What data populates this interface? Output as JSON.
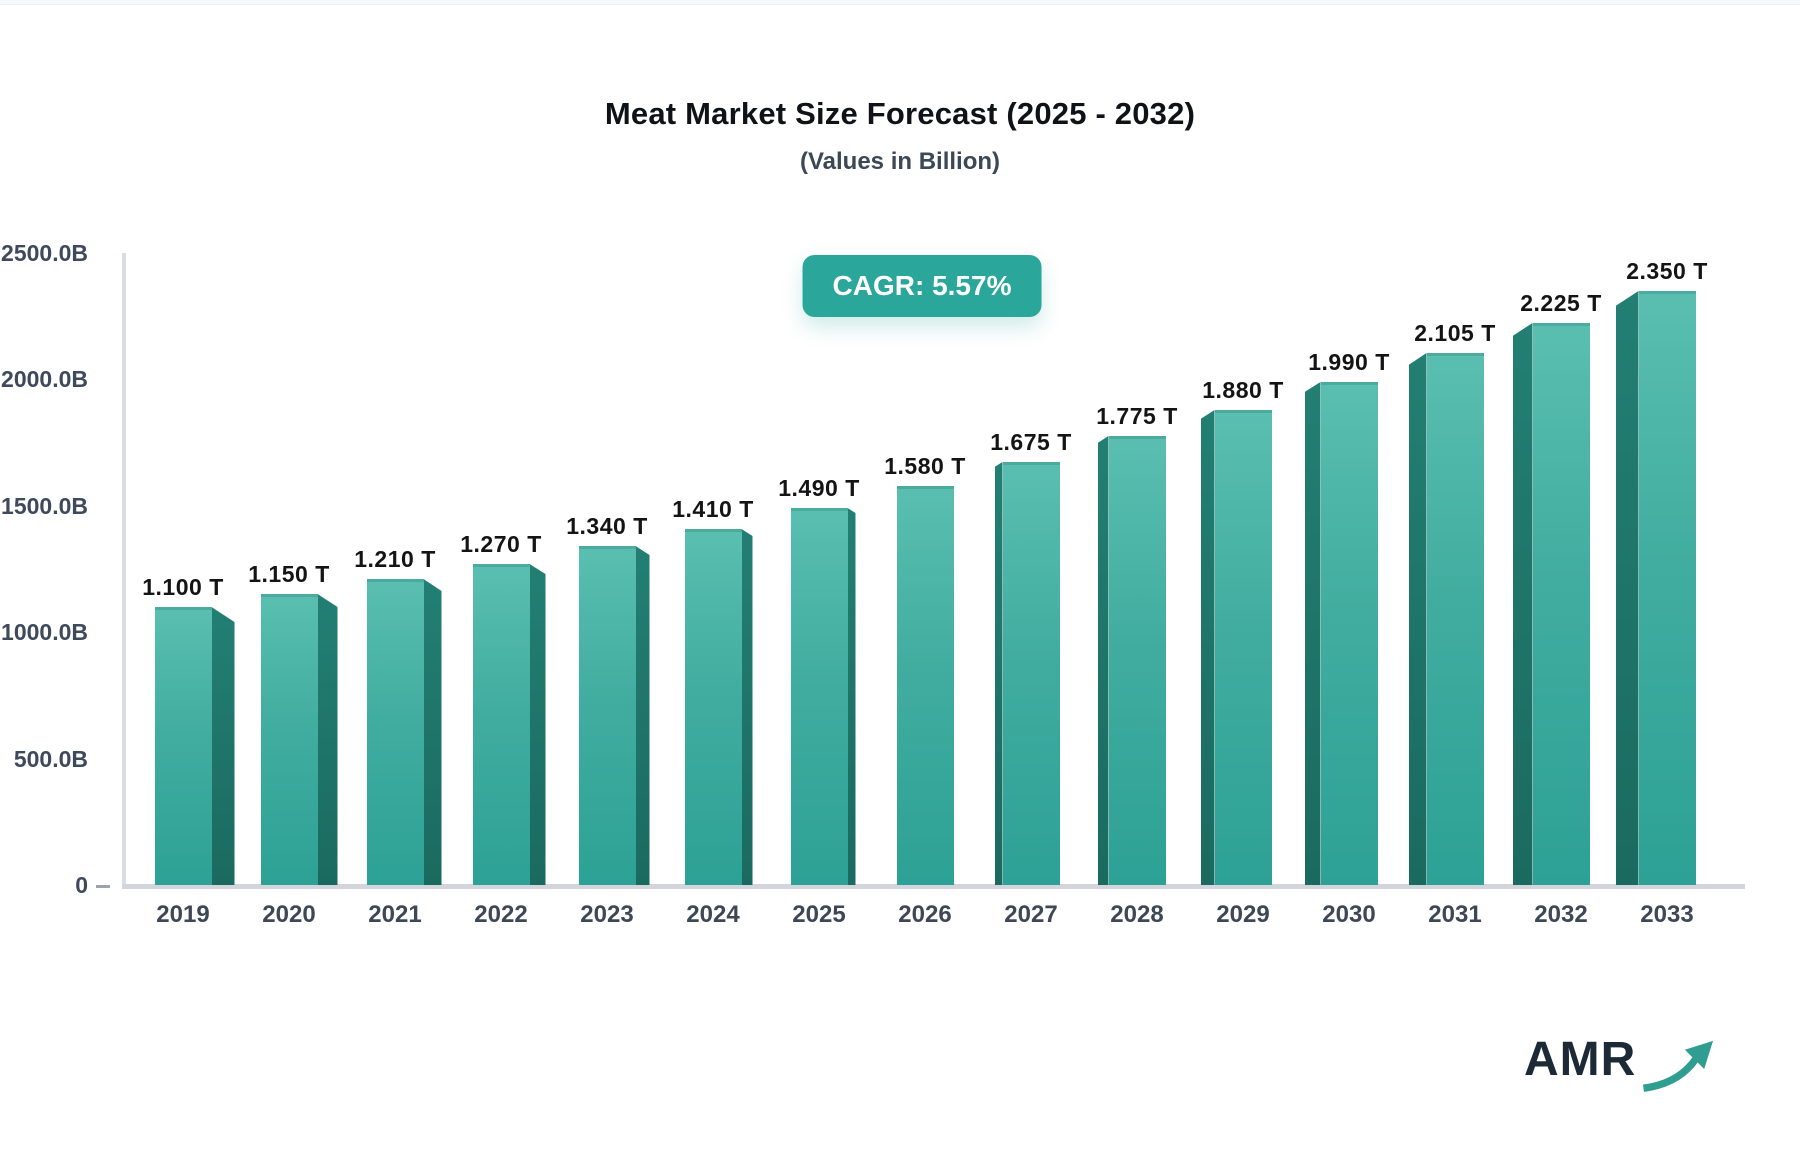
{
  "header": {
    "title": "Meat Market Size Forecast (2025 - 2032)",
    "subtitle": "(Values in Billion)",
    "cagr_badge": "CAGR: 5.57%"
  },
  "logo": {
    "text": "AMR",
    "arrow_icon": "trend-up-arrow"
  },
  "chart_data": {
    "type": "bar",
    "title": "Meat Market Size Forecast (2025 - 2032)",
    "subtitle": "(Values in Billion)",
    "cagr_percent": 5.57,
    "categories": [
      "2019",
      "2020",
      "2021",
      "2022",
      "2023",
      "2024",
      "2025",
      "2026",
      "2027",
      "2028",
      "2029",
      "2030",
      "2031",
      "2032",
      "2033"
    ],
    "values_billion": [
      1100,
      1150,
      1210,
      1270,
      1340,
      1410,
      1490,
      1580,
      1675,
      1775,
      1880,
      1990,
      2105,
      2225,
      2350
    ],
    "bar_labels": [
      "1.100 T",
      "1.150 T",
      "1.210 T",
      "1.270 T",
      "1.340 T",
      "1.410 T",
      "1.490 T",
      "1.580 T",
      "1.675 T",
      "1.775 T",
      "1.880 T",
      "1.990 T",
      "2.105 T",
      "2.225 T",
      "2.350 T"
    ],
    "xlabel": "",
    "ylabel": "",
    "y_ticks": [
      "2500.0B",
      "2000.0B",
      "1500.0B",
      "1000.0B",
      "500.0B",
      "0"
    ],
    "ylim": [
      0,
      2500
    ],
    "grid": false,
    "legend_position": "none",
    "colors": {
      "bar_face": "#3aa99b",
      "bar_face_light": "#5abfb0",
      "bar_face_dark": "#2da195",
      "bar_side": "#1f7a6e",
      "badge_bg": "#2aa69a",
      "axis_text": "#3e4a5c",
      "axis_line": "#d7dae0",
      "title_text": "#0f1317",
      "logo_text": "#1c2936",
      "logo_arrow": "#2f9d90"
    }
  }
}
